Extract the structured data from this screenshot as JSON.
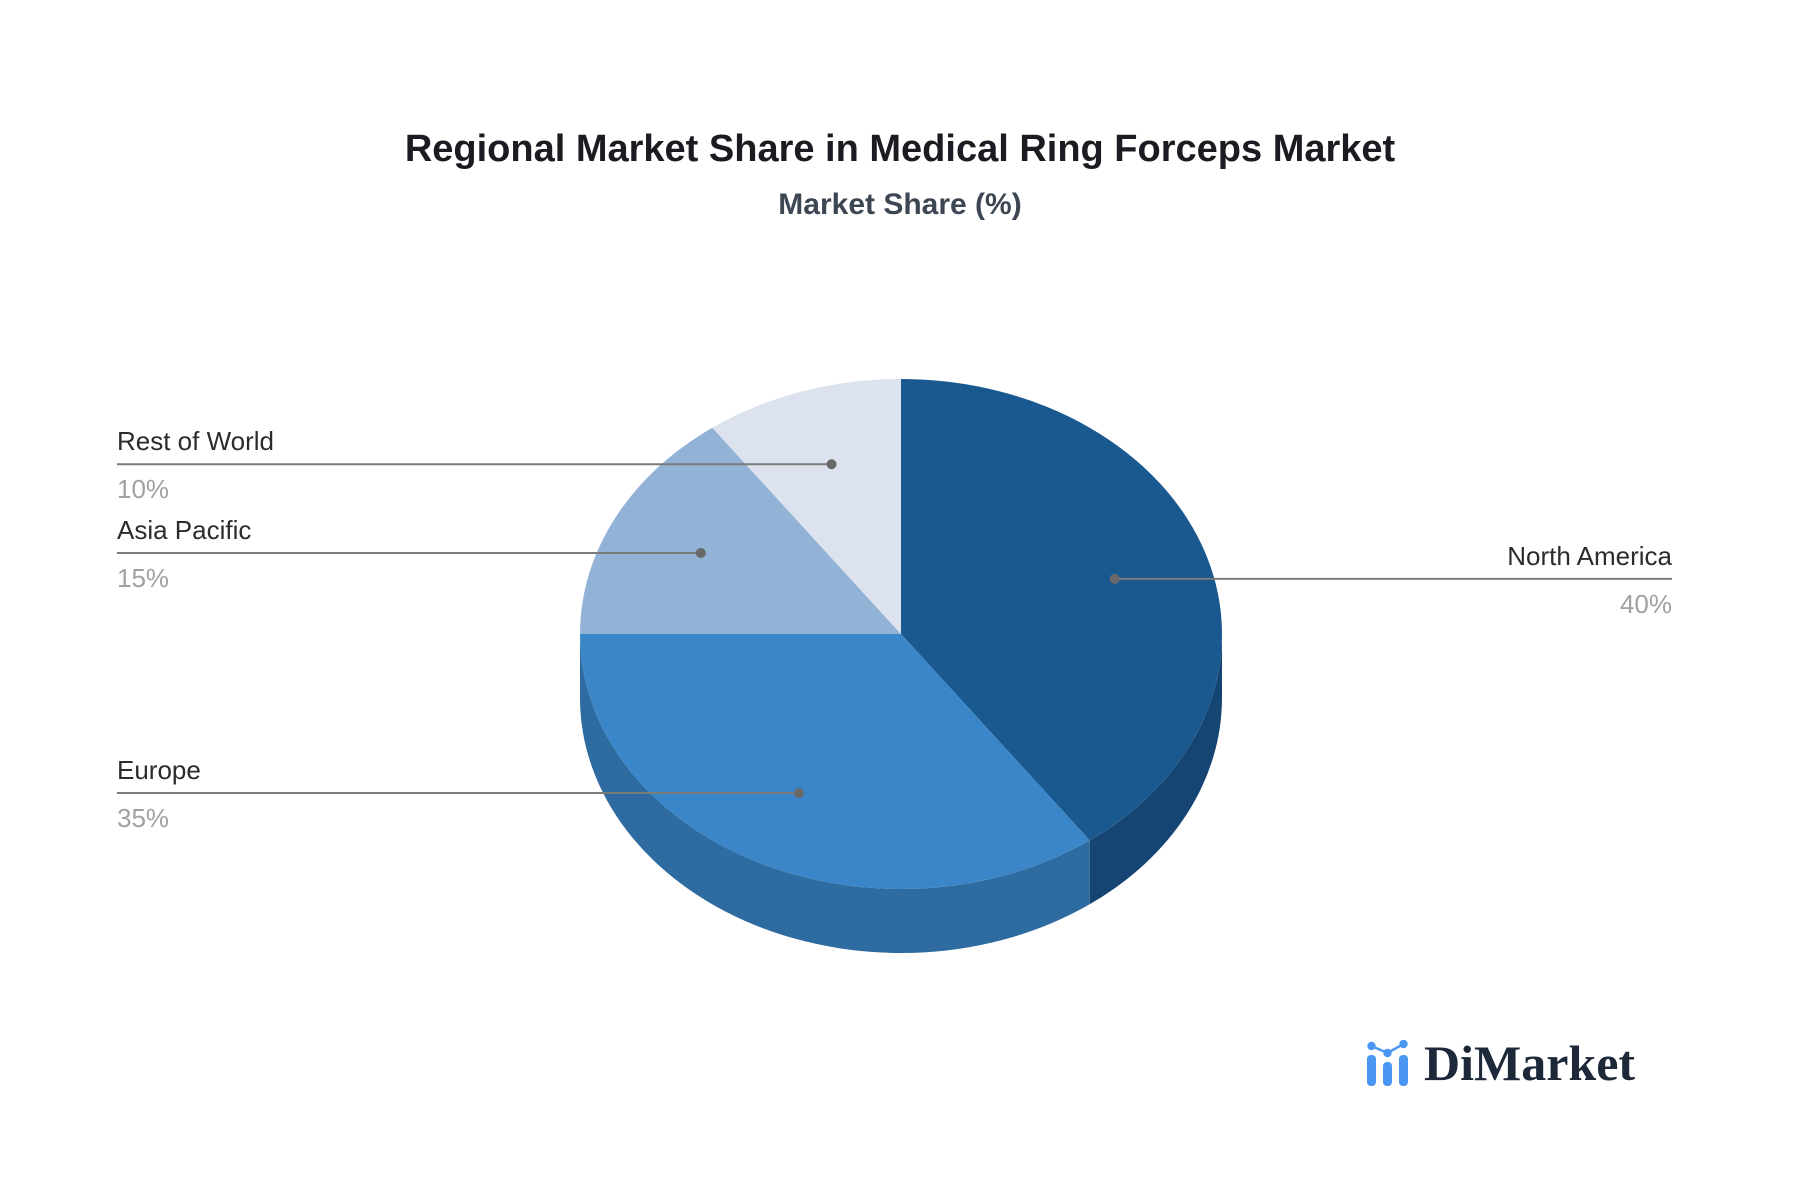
{
  "chart_data": {
    "type": "pie",
    "style": "3d-pie",
    "title": "Regional Market Share in Medical Ring Forceps Market",
    "subtitle": "Market Share (%)",
    "unit": "%",
    "legend_position": "none",
    "label_style": "leader-line-callouts",
    "slices": [
      {
        "label": "North America",
        "value": 40,
        "percent_label": "40%",
        "color": "#1A5890"
      },
      {
        "label": "Europe",
        "value": 35,
        "percent_label": "35%",
        "color": "#3A86C8"
      },
      {
        "label": "Asia Pacific",
        "value": 15,
        "percent_label": "15%",
        "color": "#92B2D6"
      },
      {
        "label": "Rest of World",
        "value": 10,
        "percent_label": "10%",
        "color": "#DCE3EE"
      }
    ]
  },
  "logo": {
    "text": "DiMarket",
    "icon": "bar-chart-with-trend-line",
    "icon_color": "#4A97F3",
    "text_color": "#1D2839"
  }
}
